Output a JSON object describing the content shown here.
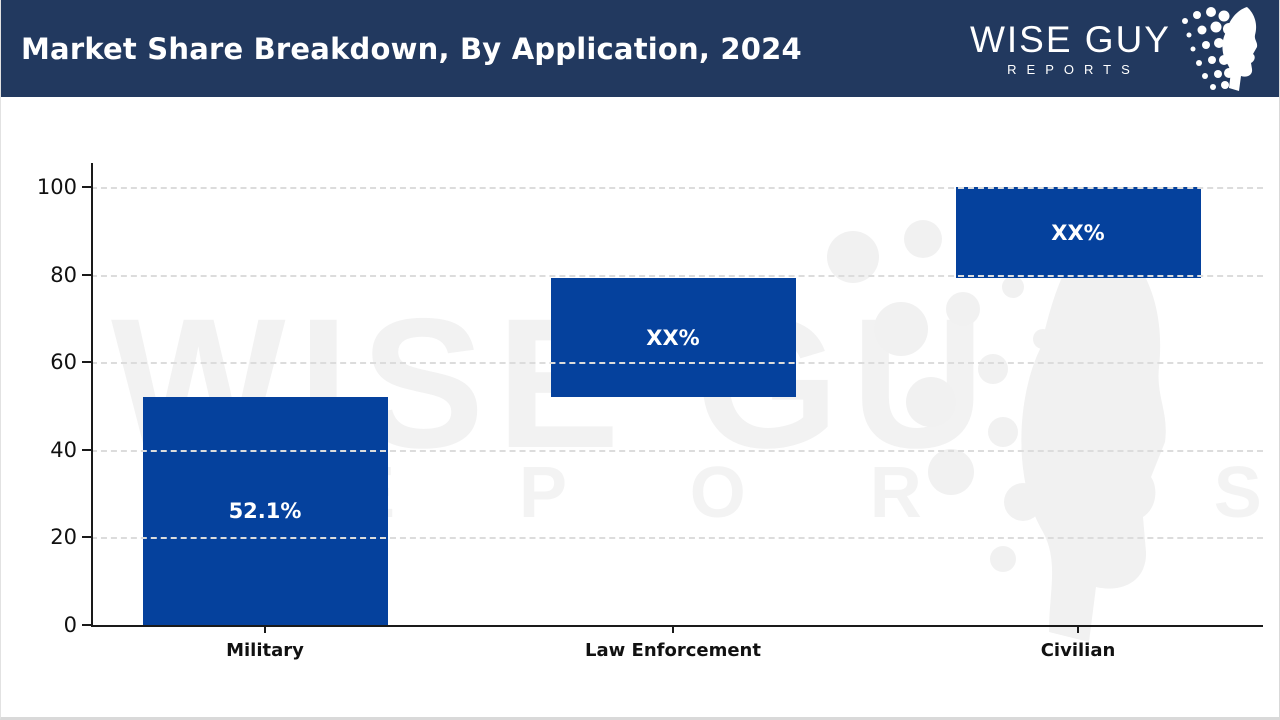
{
  "header": {
    "title": "Market Share Breakdown, By Application, 2024",
    "logo": {
      "wordmark": "WISE GUY",
      "subtext": "REPORTS"
    },
    "bg_color": "#22395F"
  },
  "watermark": {
    "line1": "WISE GU",
    "line2": "R E P O R T S"
  },
  "chart_data": {
    "type": "waterfall",
    "title": "Market Share Breakdown, By Application, 2024",
    "categories": [
      "Military",
      "Law Enforcement",
      "Civilian"
    ],
    "bars": [
      {
        "category": "Military",
        "start": 0,
        "end": 52.1,
        "label": "52.1%"
      },
      {
        "category": "Law Enforcement",
        "start": 52.1,
        "end": 79.2,
        "label": "XX%"
      },
      {
        "category": "Civilian",
        "start": 79.2,
        "end": 100,
        "label": "XX%"
      }
    ],
    "segment_values": [
      52.1,
      27.1,
      20.8
    ],
    "y_ticks": [
      0,
      20,
      40,
      60,
      80,
      100
    ],
    "ylim": [
      0,
      105.5
    ],
    "xlabel": "",
    "ylabel": "",
    "bar_color": "#05419D",
    "grid": "horizontal-dashed",
    "gridline_color": "#dcdcdc",
    "legend": "none"
  }
}
